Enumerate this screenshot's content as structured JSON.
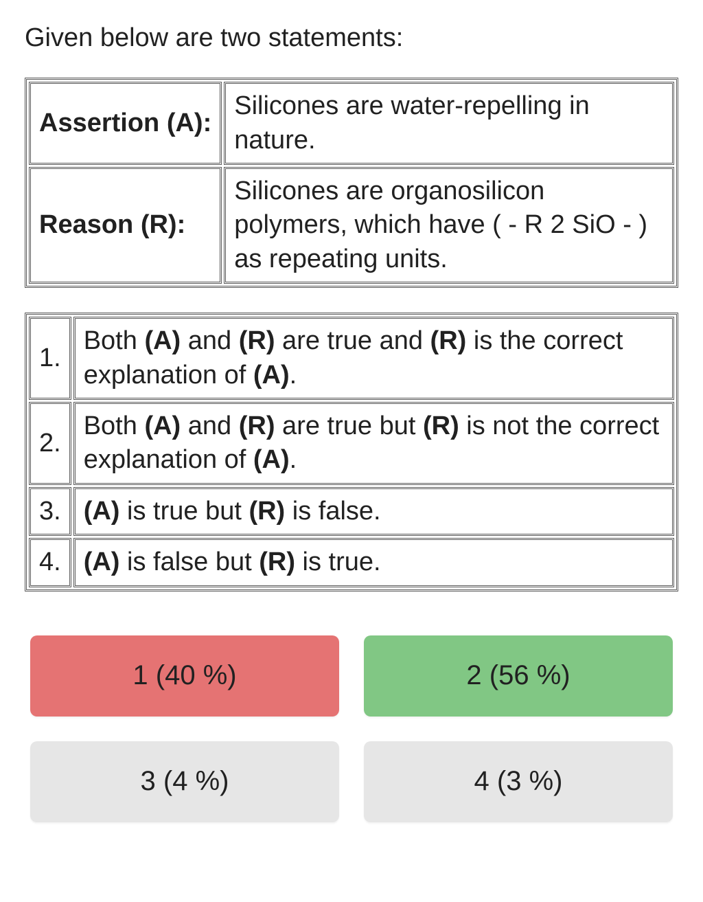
{
  "intro": "Given below are two statements:",
  "statements": {
    "assertion_label": "Assertion (A):",
    "assertion_text": "Silicones are water-repelling in nature.",
    "reason_label": "Reason (R):",
    "reason_text": "Silicones are organosilicon polymers, which have  ( - R 2 SiO - )  as repeating units."
  },
  "options": {
    "n1": "1.",
    "t1_a": "Both ",
    "t1_b": "(A)",
    "t1_c": " and ",
    "t1_d": "(R)",
    "t1_e": " are true and ",
    "t1_f": "(R)",
    "t1_g": " is the correct explanation of ",
    "t1_h": "(A)",
    "t1_i": ".",
    "n2": "2.",
    "t2_a": "Both ",
    "t2_b": "(A)",
    "t2_c": " and ",
    "t2_d": "(R)",
    "t2_e": " are true but ",
    "t2_f": "(R)",
    "t2_g": " is not the correct explanation of ",
    "t2_h": "(A)",
    "t2_i": ".",
    "n3": "3.",
    "t3_a": "(A)",
    "t3_b": " is true but ",
    "t3_c": "(R)",
    "t3_d": " is false.",
    "n4": "4.",
    "t4_a": "(A)",
    "t4_b": " is false but ",
    "t4_c": "(R)",
    "t4_d": " is true."
  },
  "answers": [
    {
      "label": "1 (40 %)",
      "bg": "#e57373"
    },
    {
      "label": "2 (56 %)",
      "bg": "#81c784"
    },
    {
      "label": "3 (4 %)",
      "bg": "#e6e6e6"
    },
    {
      "label": "4 (3 %)",
      "bg": "#e6e6e6"
    }
  ]
}
